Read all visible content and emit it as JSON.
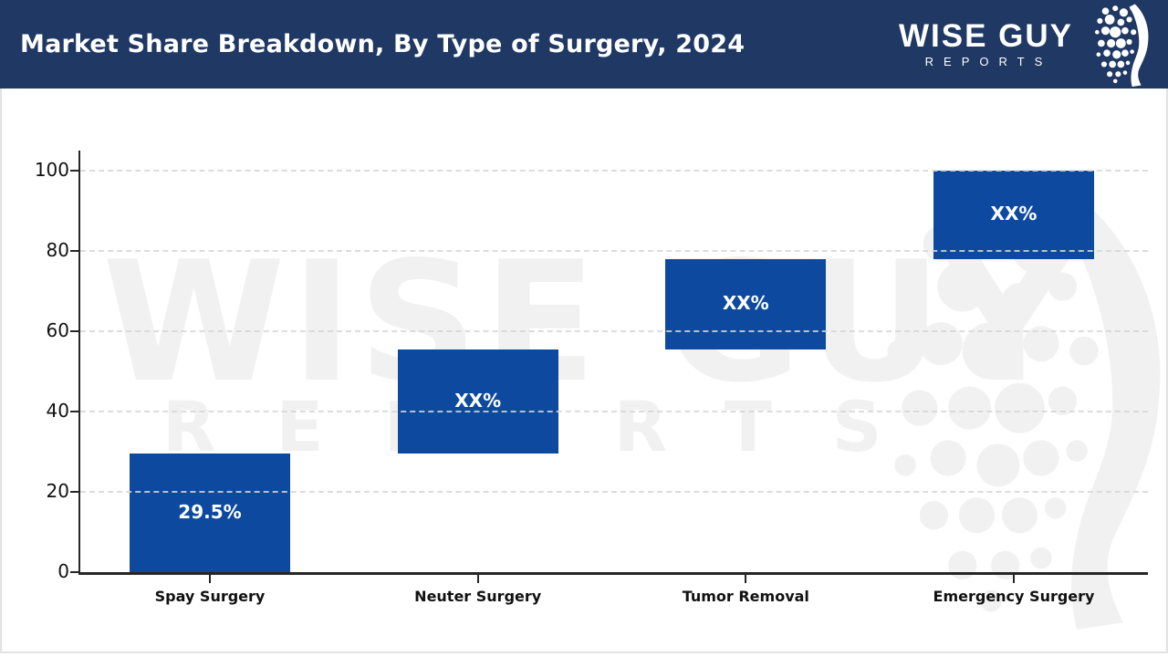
{
  "header": {
    "title": "Market Share Breakdown, By Type of Surgery, 2024",
    "logo": {
      "line1": "WISE GUY",
      "line2": "REPORTS"
    }
  },
  "watermark": {
    "line1": "WISE GUY",
    "line2": "REPORTS"
  },
  "chart_data": {
    "type": "bar",
    "subtype": "waterfall",
    "title": "Market Share Breakdown, By Type of Surgery, 2024",
    "categories": [
      "Spay Surgery",
      "Neuter Surgery",
      "Tumor Removal",
      "Emergency Surgery"
    ],
    "segments": [
      {
        "category": "Spay Surgery",
        "start": 0,
        "end": 29.5,
        "label": "29.5%"
      },
      {
        "category": "Neuter Surgery",
        "start": 29.5,
        "end": 55.5,
        "label": "XX%"
      },
      {
        "category": "Tumor Removal",
        "start": 55.5,
        "end": 78,
        "label": "XX%"
      },
      {
        "category": "Emergency Surgery",
        "start": 78,
        "end": 100,
        "label": "XX%"
      }
    ],
    "xlabel": "",
    "ylabel": "",
    "ylim": [
      0,
      100
    ],
    "yticks": [
      0,
      20,
      40,
      60,
      80,
      100
    ],
    "grid": "horizontal-dashed",
    "legend_position": "none",
    "bar_color": "#0d4a9f",
    "bar_label_color": "#ffffff"
  },
  "colors": {
    "header_bg": "#1f3864",
    "bar": "#0d4a9f",
    "axis": "#262626",
    "gridline": "#d6d6d6",
    "watermark": "#f1f1f1",
    "frame_border": "#e2e2e2"
  }
}
